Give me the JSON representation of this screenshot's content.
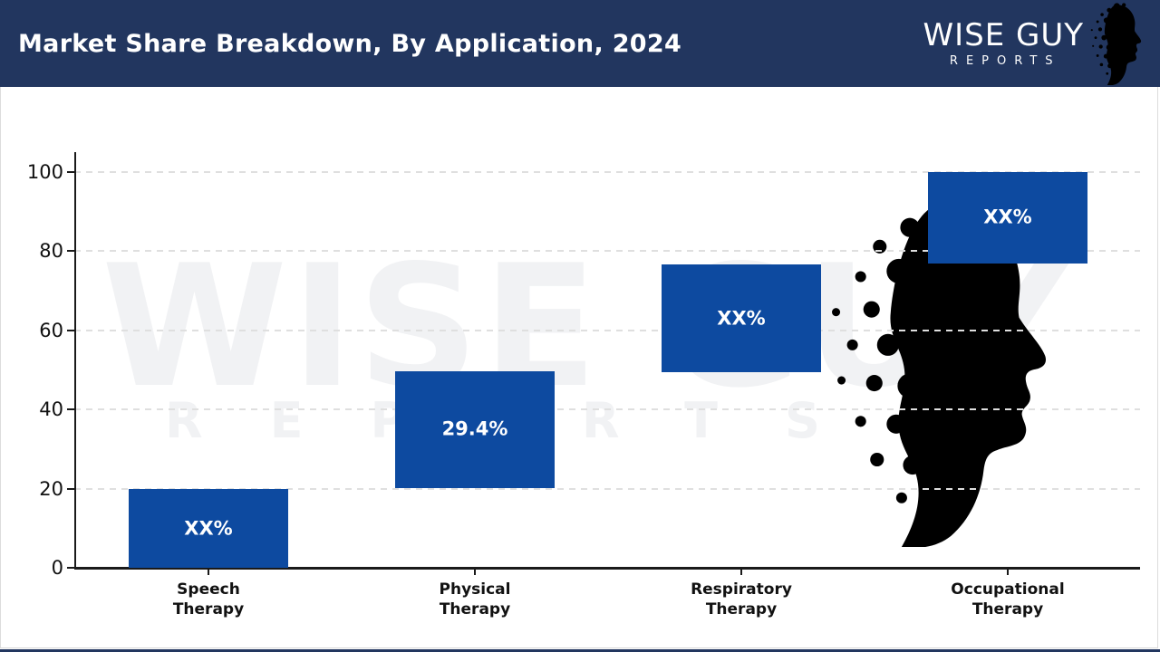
{
  "header": {
    "title": "Market Share Breakdown, By Application, 2024",
    "background_color": "#22365f",
    "logo": {
      "line1": "WISE GUY",
      "line2": "REPORTS",
      "face_icon": "dotted-face-profile"
    }
  },
  "watermark": {
    "line1": "WISE GUY",
    "line2": "REPORTS",
    "face_icon": "dotted-face-profile"
  },
  "chart_data": {
    "type": "bar",
    "subtype": "floating-waterfall",
    "title": "Market Share Breakdown, By Application, 2024",
    "categories": [
      "Speech Therapy",
      "Physical Therapy",
      "Respiratory Therapy",
      "Occupational Therapy"
    ],
    "series": [
      {
        "name": "Market share (%)",
        "segments": [
          {
            "category": "Speech Therapy",
            "start": 0,
            "end": 19.8,
            "label": "XX%"
          },
          {
            "category": "Physical Therapy",
            "start": 20.2,
            "end": 49.6,
            "label": "29.4%"
          },
          {
            "category": "Respiratory Therapy",
            "start": 49.4,
            "end": 76.5,
            "label": "XX%"
          },
          {
            "category": "Occupational Therapy",
            "start": 76.9,
            "end": 100,
            "label": "XX%"
          }
        ]
      }
    ],
    "ylim": [
      0,
      100
    ],
    "yticks": [
      0,
      20,
      40,
      60,
      80,
      100
    ],
    "xlabel": "",
    "ylabel": "",
    "grid": "horizontal-dashed",
    "legend": "none",
    "bar_color": "#0d4aa0",
    "bar_label_color": "#ffffff",
    "axis_color": "#1a1a1a",
    "gridline_color": "#dfdfdf"
  }
}
